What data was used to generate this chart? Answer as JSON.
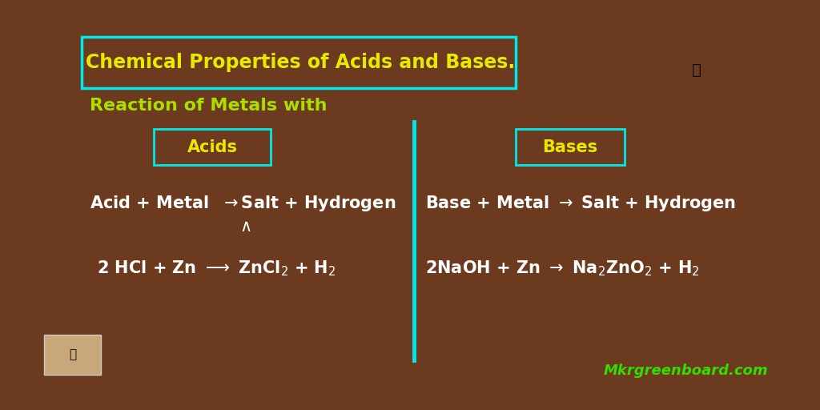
{
  "bg_color": "#1a6b4a",
  "frame_color": "#6b3a1f",
  "title": "Chemical Properties of Acids and Bases.",
  "title_color": "#e8e800",
  "title_box_color": "#00e8e8",
  "subtitle": "Reaction of Metals with",
  "subtitle_color": "#aadd00",
  "acids_label": "Acids",
  "bases_label": "Bases",
  "label_box_color": "#00e8e8",
  "label_text_color": "#e8e800",
  "divider_color": "#00e8e8",
  "eq_text_color": "#ffffff",
  "watermark": "Mkrgreenboard.com",
  "watermark_color": "#33dd00"
}
